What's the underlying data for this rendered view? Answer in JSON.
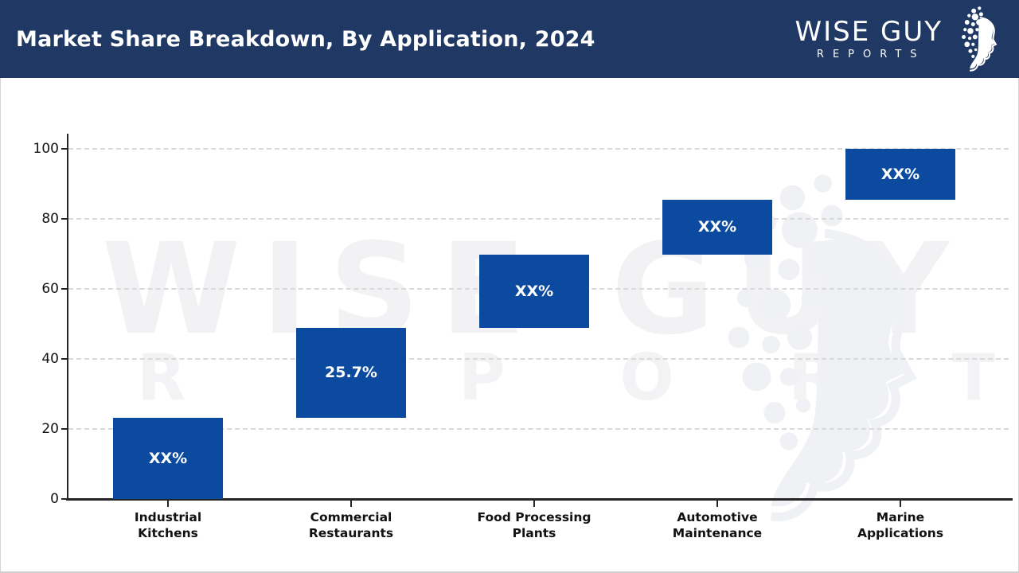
{
  "header": {
    "title": "Market Share Breakdown, By Application, 2024",
    "bg_color": "#1f3864",
    "logo": {
      "line1": "WISE GUY",
      "line2": "REPORTS"
    }
  },
  "watermark": {
    "line1": "WISE GUY",
    "line2": "R E P O R T S"
  },
  "chart_data": {
    "type": "bar",
    "subtype": "floating-waterfall",
    "title": "Market Share Breakdown, By Application, 2024",
    "categories": [
      "Industrial\nKitchens",
      "Commercial\nRestaurants",
      "Food Processing\nPlants",
      "Automotive\nMaintenance",
      "Marine\nApplications"
    ],
    "series": [
      {
        "category": "Industrial Kitchens",
        "start": 0,
        "end": 23.2,
        "label": "XX%"
      },
      {
        "category": "Commercial Restaurants",
        "start": 23.2,
        "end": 48.9,
        "label": "25.7%",
        "value": 25.7
      },
      {
        "category": "Food Processing Plants",
        "start": 48.9,
        "end": 69.7,
        "label": "XX%"
      },
      {
        "category": "Automotive Maintenance",
        "start": 69.7,
        "end": 85.4,
        "label": "XX%"
      },
      {
        "category": "Marine Applications",
        "start": 85.4,
        "end": 99.9,
        "label": "XX%"
      }
    ],
    "yticks": [
      0,
      20,
      40,
      60,
      80,
      100
    ],
    "ylim": [
      0,
      104
    ],
    "xlabel": "",
    "ylabel": "",
    "grid": "horizontal-dashed",
    "legend": "none",
    "bar_color": "#0b4a9e",
    "bar_label_color": "#ffffff",
    "axis_color": "#262626",
    "grid_color": "#d9d9d9"
  }
}
